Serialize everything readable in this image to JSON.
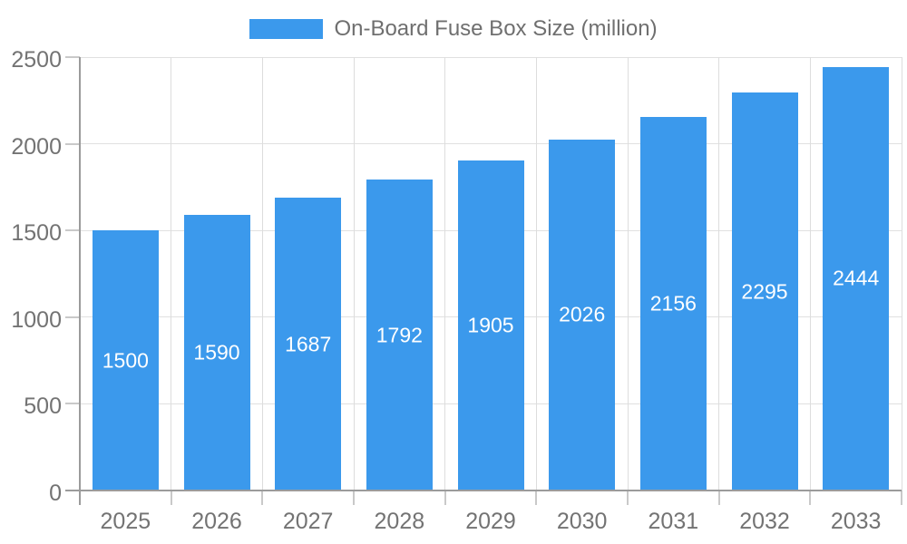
{
  "chart_data": {
    "type": "bar",
    "title": "On-Board Fuse Box Size (million)",
    "series_name": "On-Board Fuse Box Size (million)",
    "categories": [
      "2025",
      "2026",
      "2027",
      "2028",
      "2029",
      "2030",
      "2031",
      "2032",
      "2033"
    ],
    "values": [
      1500,
      1590,
      1687,
      1792,
      1905,
      2026,
      2156,
      2295,
      2444
    ],
    "xlabel": "",
    "ylabel": "",
    "ylim": [
      0,
      2500
    ],
    "yticks": [
      0,
      500,
      1000,
      1500,
      2000,
      2500
    ],
    "grid": true,
    "legend_position": "top",
    "value_labels": "inside-center",
    "colors": {
      "bar": "#3b99ec",
      "bar_value_text": "#ffffff",
      "axis_text": "#737373",
      "legend_text": "#6f6f6f",
      "gridline": "#e0e0e0",
      "axis_line": "#9b9b9b",
      "tick": "#c9c9c9",
      "background": "#ffffff"
    }
  }
}
